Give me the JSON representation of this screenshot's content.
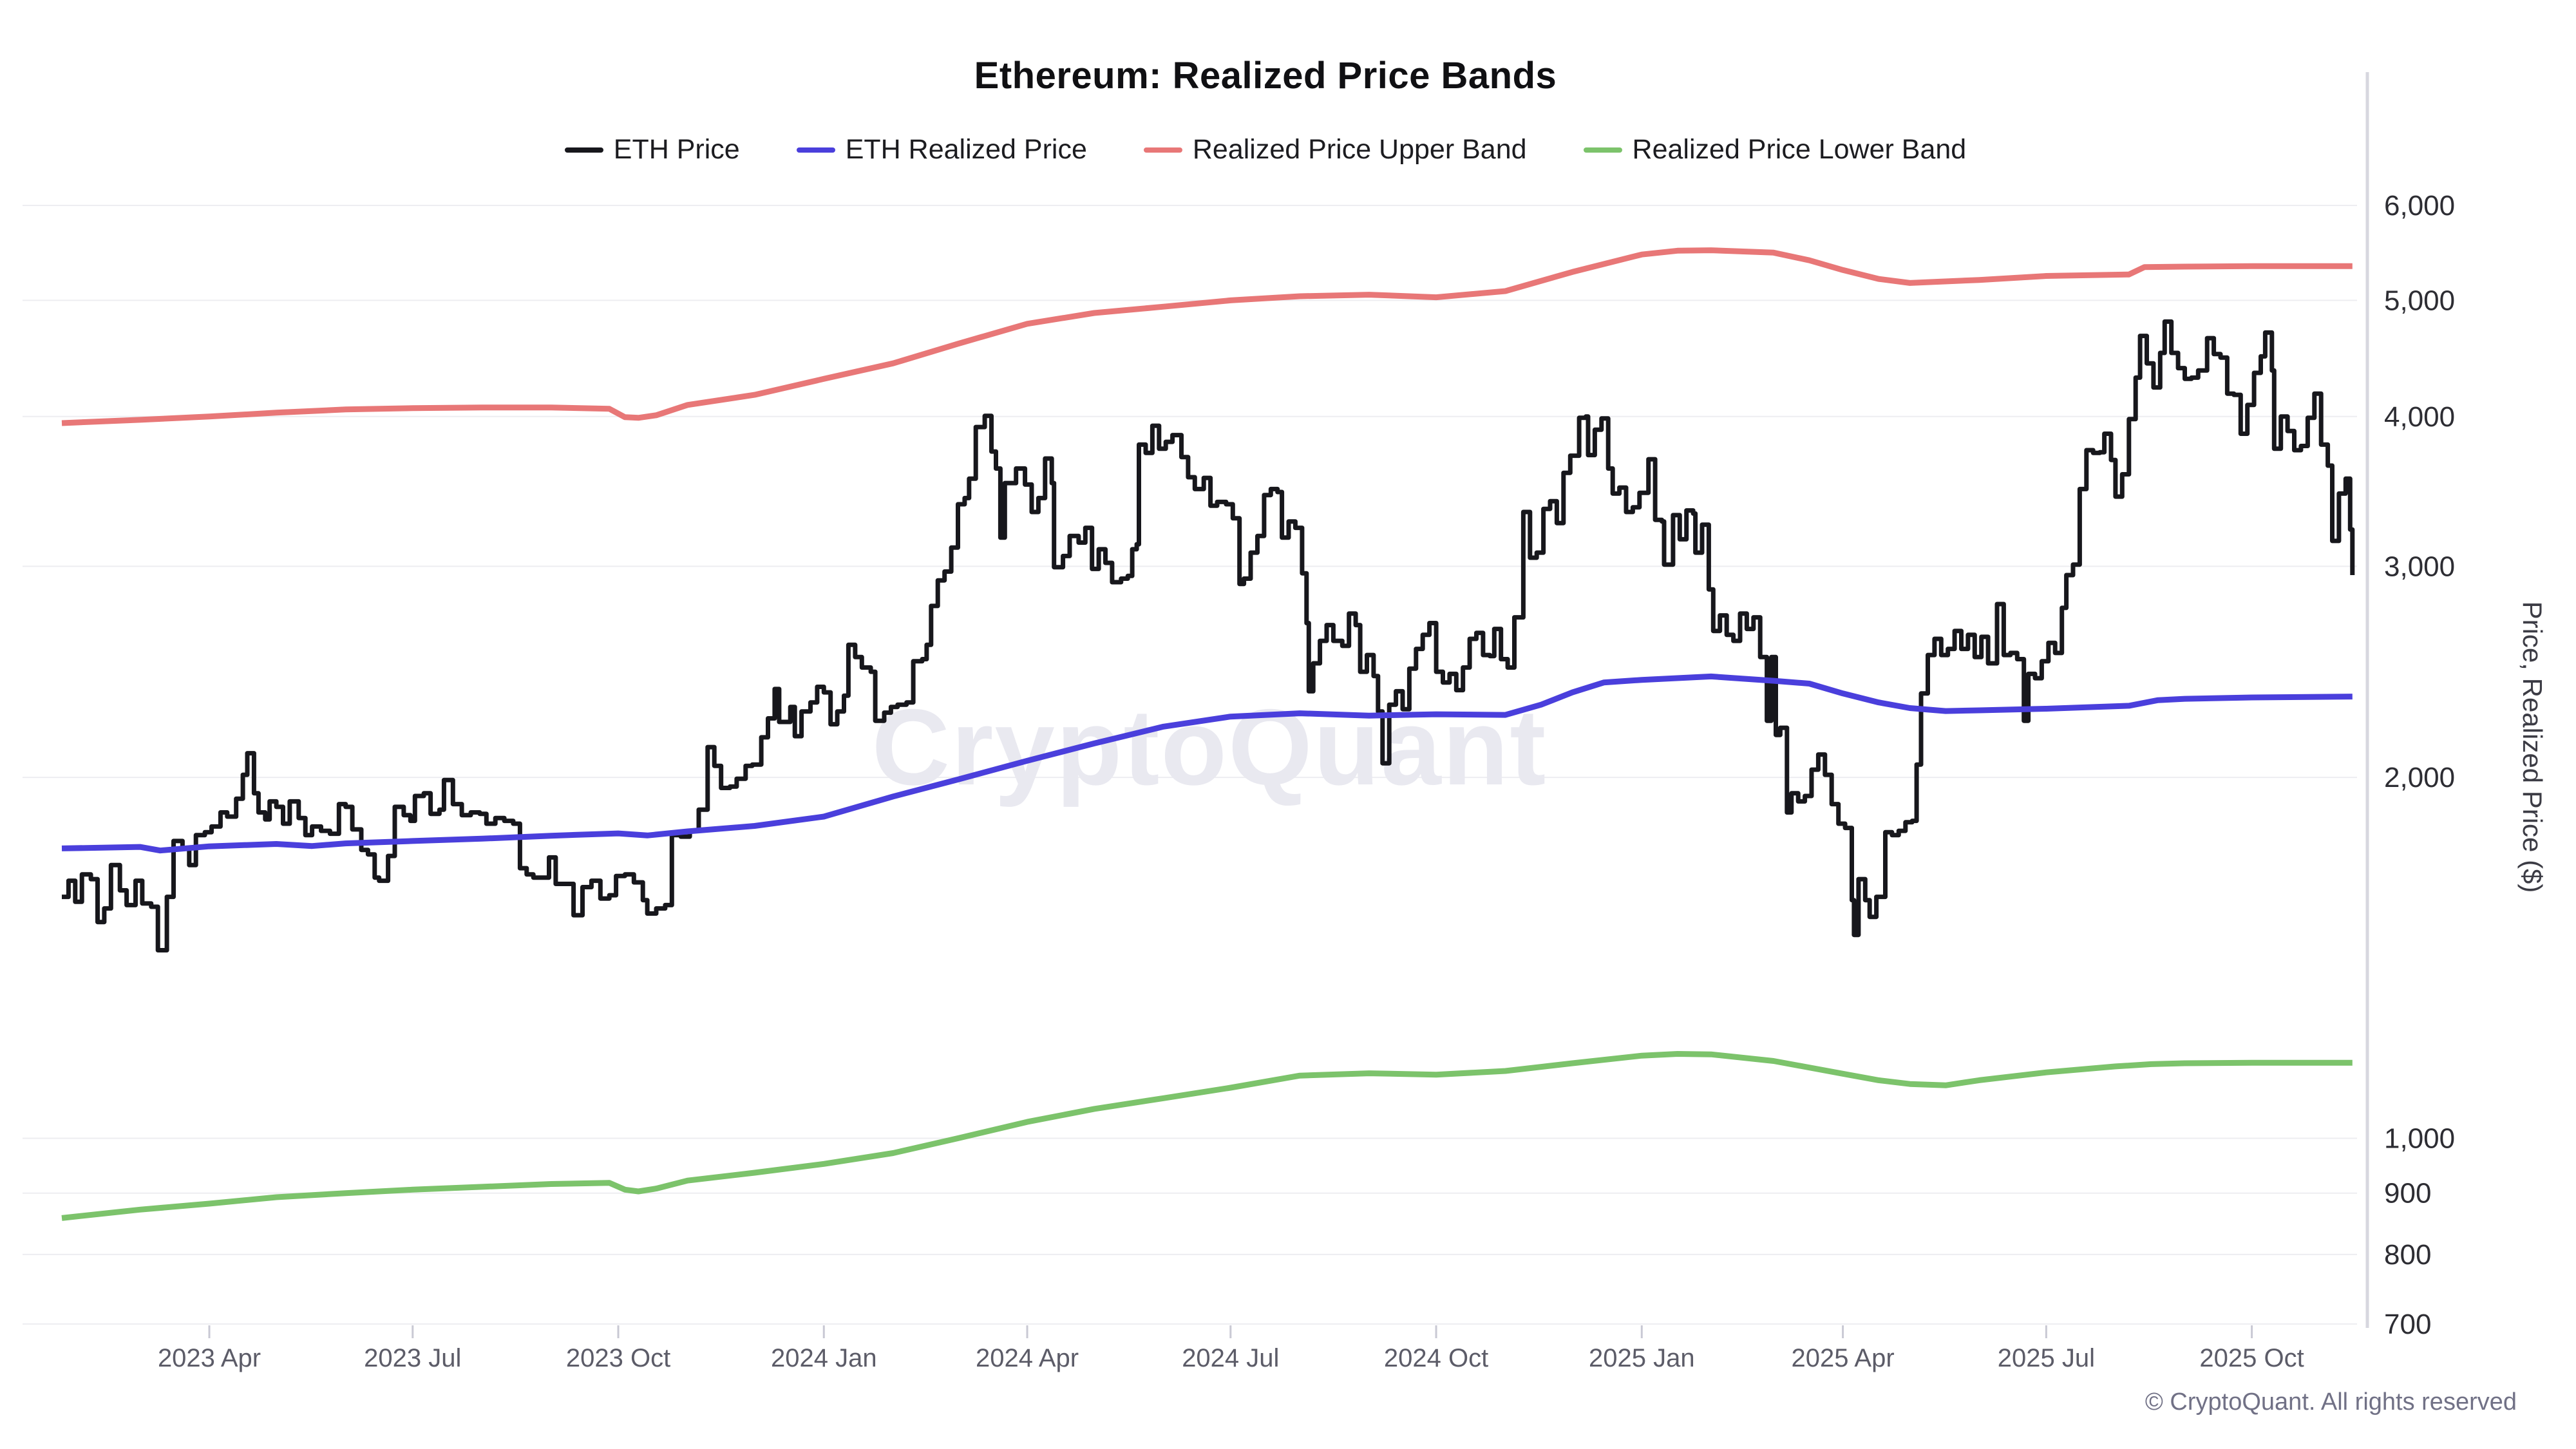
{
  "title": "Ethereum: Realized Price Bands",
  "watermark": "CryptoQuant",
  "copyright": "© CryptoQuant. All rights reserved",
  "legend": {
    "items": [
      {
        "label": "ETH Price",
        "color": "#17171c"
      },
      {
        "label": "ETH Realized Price",
        "color": "#4a3fdc"
      },
      {
        "label": "Realized Price Upper Band",
        "color": "#e87777"
      },
      {
        "label": "Realized Price Lower Band",
        "color": "#7cc36b"
      }
    ]
  },
  "chart_data": {
    "type": "line",
    "title": "Ethereum: Realized Price Bands",
    "ylabel": "Price, Realized Price ($)",
    "y_scale": "log",
    "y_ticks": [
      6000,
      5000,
      4000,
      3000,
      2000,
      1000,
      900,
      800,
      700
    ],
    "ylim": [
      700,
      7600
    ],
    "grid": "horizontal",
    "legend_position": "top",
    "x_ticks": [
      {
        "d": 66,
        "label": "2023 Apr"
      },
      {
        "d": 157,
        "label": "2023 Jul"
      },
      {
        "d": 249,
        "label": "2023 Oct"
      },
      {
        "d": 341,
        "label": "2024 Jan"
      },
      {
        "d": 432,
        "label": "2024 Apr"
      },
      {
        "d": 523,
        "label": "2024 Jul"
      },
      {
        "d": 615,
        "label": "2024 Oct"
      },
      {
        "d": 707,
        "label": "2025 Jan"
      },
      {
        "d": 797,
        "label": "2025 Apr"
      },
      {
        "d": 888,
        "label": "2025 Jul"
      },
      {
        "d": 980,
        "label": "2025 Oct"
      }
    ],
    "x_range_days": [
      0,
      1025
    ],
    "series": [
      {
        "name": "ETH Price",
        "color": "#17171c",
        "style": "step",
        "width": 7,
        "d": [
          0,
          3,
          6,
          9,
          13,
          16,
          19,
          22,
          26,
          29,
          33,
          36,
          40,
          43,
          47,
          50,
          54,
          57,
          60,
          64,
          67,
          71,
          74,
          78,
          81,
          83,
          86,
          88,
          91,
          93,
          96,
          99,
          102,
          106,
          109,
          112,
          116,
          120,
          124,
          127,
          130,
          134,
          137,
          140,
          142,
          146,
          149,
          153,
          156,
          158,
          162,
          165,
          169,
          171,
          175,
          179,
          183,
          187,
          190,
          194,
          198,
          202,
          205,
          208,
          211,
          215,
          218,
          221,
          225,
          229,
          233,
          237,
          241,
          245,
          248,
          252,
          256,
          260,
          262,
          266,
          270,
          273,
          277,
          281,
          285,
          289,
          292,
          295,
          299,
          302,
          306,
          309,
          313,
          316,
          319,
          321,
          326,
          328,
          331,
          335,
          338,
          341,
          344,
          347,
          350,
          352,
          355,
          358,
          362,
          364,
          368,
          371,
          374,
          378,
          381,
          385,
          387,
          389,
          392,
          395,
          398,
          401,
          404,
          406,
          409,
          413,
          416,
          418,
          420,
          422,
          427,
          431,
          434,
          437,
          440,
          443,
          444,
          448,
          451,
          455,
          458,
          461,
          464,
          467,
          470,
          474,
          477,
          479,
          481,
          482,
          485,
          488,
          491,
          494,
          497,
          501,
          504,
          507,
          511,
          514,
          517,
          521,
          524,
          527,
          529,
          532,
          535,
          538,
          541,
          544,
          546,
          549,
          552,
          555,
          557,
          558,
          560,
          563,
          566,
          569,
          573,
          576,
          579,
          581,
          584,
          587,
          589,
          591,
          594,
          597,
          600,
          603,
          606,
          609,
          612,
          615,
          618,
          621,
          624,
          627,
          630,
          633,
          636,
          639,
          641,
          644,
          647,
          650,
          654,
          657,
          660,
          663,
          666,
          669,
          672,
          675,
          679,
          682,
          683,
          686,
          689,
          692,
          694,
          697,
          700,
          703,
          706,
          710,
          713,
          716,
          717,
          721,
          724,
          727,
          730,
          731,
          734,
          737,
          739,
          742,
          745,
          748,
          751,
          754,
          757,
          760,
          763,
          765,
          767,
          769,
          772,
          774,
          777,
          780,
          783,
          786,
          789,
          792,
          795,
          798,
          801,
          802,
          804,
          807,
          809,
          812,
          816,
          819,
          822,
          825,
          828,
          830,
          832,
          835,
          838,
          841,
          844,
          847,
          850,
          853,
          856,
          859,
          862,
          866,
          869,
          872,
          875,
          878,
          880,
          883,
          886,
          889,
          892,
          895,
          897,
          900,
          903,
          906,
          909,
          912,
          914,
          917,
          919,
          922,
          925,
          928,
          930,
          933,
          936,
          939,
          941,
          944,
          947,
          950,
          953,
          956,
          960,
          963,
          966,
          969,
          972,
          975,
          978,
          981,
          984,
          986,
          989,
          990,
          993,
          996,
          999,
          1002,
          1005,
          1008,
          1011,
          1014,
          1016,
          1019,
          1022,
          1024,
          1025
        ],
        "v": [
          1590,
          1640,
          1575,
          1660,
          1645,
          1515,
          1555,
          1690,
          1610,
          1565,
          1640,
          1570,
          1560,
          1435,
          1590,
          1770,
          1745,
          1690,
          1790,
          1800,
          1820,
          1870,
          1855,
          1920,
          2010,
          2095,
          1940,
          1870,
          1845,
          1910,
          1890,
          1830,
          1910,
          1850,
          1790,
          1820,
          1805,
          1795,
          1900,
          1890,
          1810,
          1740,
          1725,
          1650,
          1640,
          1720,
          1890,
          1860,
          1840,
          1930,
          1940,
          1865,
          1880,
          1990,
          1900,
          1860,
          1870,
          1865,
          1830,
          1850,
          1840,
          1830,
          1680,
          1660,
          1650,
          1650,
          1715,
          1630,
          1630,
          1535,
          1620,
          1640,
          1585,
          1595,
          1655,
          1660,
          1635,
          1580,
          1540,
          1555,
          1565,
          1790,
          1785,
          1805,
          1880,
          2120,
          2045,
          1960,
          1965,
          1995,
          2045,
          2050,
          2160,
          2240,
          2370,
          2225,
          2290,
          2165,
          2270,
          2310,
          2380,
          2355,
          2215,
          2270,
          2340,
          2580,
          2520,
          2470,
          2450,
          2230,
          2265,
          2290,
          2300,
          2310,
          2500,
          2510,
          2580,
          2780,
          2920,
          2970,
          3110,
          3380,
          3420,
          3550,
          3920,
          4005,
          3740,
          3620,
          3170,
          3520,
          3620,
          3510,
          3330,
          3420,
          3690,
          3520,
          2995,
          3060,
          3180,
          3140,
          3230,
          2985,
          3100,
          3020,
          2910,
          2930,
          2945,
          3100,
          3130,
          3790,
          3730,
          3930,
          3760,
          3810,
          3860,
          3700,
          3560,
          3480,
          3555,
          3370,
          3395,
          3380,
          3290,
          2900,
          2930,
          3080,
          3180,
          3440,
          3480,
          3460,
          3170,
          3270,
          3230,
          2960,
          2690,
          2360,
          2490,
          2600,
          2680,
          2600,
          2575,
          2740,
          2680,
          2450,
          2530,
          2430,
          2270,
          2055,
          2300,
          2360,
          2280,
          2465,
          2560,
          2630,
          2690,
          2450,
          2400,
          2440,
          2365,
          2470,
          2610,
          2640,
          2530,
          2525,
          2660,
          2510,
          2470,
          2720,
          3330,
          3050,
          3080,
          3350,
          3400,
          3260,
          3590,
          3710,
          3990,
          4000,
          3715,
          3900,
          3985,
          3620,
          3450,
          3490,
          3330,
          3360,
          3455,
          3685,
          3280,
          3270,
          3010,
          3310,
          3160,
          3340,
          3320,
          3080,
          3250,
          2870,
          2650,
          2730,
          2630,
          2600,
          2740,
          2660,
          2720,
          2520,
          2230,
          2520,
          2170,
          2200,
          1870,
          1940,
          1910,
          1930,
          2030,
          2090,
          2010,
          1900,
          1830,
          1815,
          1580,
          1478,
          1645,
          1580,
          1530,
          1590,
          1800,
          1790,
          1805,
          1835,
          1840,
          2050,
          2350,
          2530,
          2610,
          2530,
          2560,
          2650,
          2560,
          2630,
          2520,
          2620,
          2490,
          2790,
          2530,
          2540,
          2510,
          2230,
          2440,
          2420,
          2500,
          2590,
          2540,
          2770,
          2950,
          3010,
          3480,
          3750,
          3730,
          3735,
          3870,
          3680,
          3430,
          3580,
          3980,
          4310,
          4670,
          4430,
          4230,
          4520,
          4800,
          4520,
          4390,
          4300,
          4310,
          4370,
          4650,
          4510,
          4480,
          4180,
          4170,
          3870,
          4090,
          4350,
          4490,
          4700,
          4370,
          3760,
          4000,
          3890,
          3750,
          3780,
          3990,
          4180,
          3790,
          3640,
          3150,
          3450,
          3550,
          3220,
          2950
        ]
      },
      {
        "name": "Realized Price Upper Band",
        "color": "#e87777",
        "style": "line",
        "width": 9,
        "d": [
          0,
          35,
          66,
          96,
          127,
          157,
          188,
          219,
          245,
          252,
          258,
          266,
          280,
          310,
          341,
          372,
          401,
          432,
          462,
          493,
          523,
          554,
          585,
          615,
          646,
          676,
          707,
          723,
          738,
          766,
          782,
          797,
          813,
          827,
          858,
          888,
          925,
          932,
          950,
          980,
          1025
        ],
        "v": [
          3950,
          3975,
          4000,
          4030,
          4055,
          4065,
          4070,
          4070,
          4060,
          3995,
          3990,
          4010,
          4090,
          4170,
          4300,
          4430,
          4600,
          4780,
          4880,
          4940,
          5000,
          5040,
          5055,
          5030,
          5090,
          5280,
          5460,
          5500,
          5505,
          5480,
          5400,
          5300,
          5210,
          5170,
          5200,
          5240,
          5255,
          5330,
          5335,
          5340,
          5340
        ]
      },
      {
        "name": "Realized Price Lower Band",
        "color": "#7cc36b",
        "style": "line",
        "width": 9,
        "d": [
          0,
          35,
          66,
          96,
          127,
          157,
          188,
          219,
          245,
          252,
          258,
          266,
          280,
          310,
          341,
          372,
          401,
          432,
          462,
          493,
          523,
          554,
          585,
          615,
          646,
          676,
          707,
          723,
          738,
          766,
          797,
          813,
          827,
          843,
          858,
          888,
          919,
          935,
          950,
          980,
          1011,
          1025
        ],
        "v": [
          858,
          872,
          882,
          893,
          900,
          906,
          911,
          916,
          918,
          906,
          903,
          908,
          922,
          936,
          952,
          972,
          1000,
          1032,
          1058,
          1080,
          1102,
          1128,
          1133,
          1130,
          1138,
          1155,
          1172,
          1176,
          1175,
          1160,
          1132,
          1118,
          1110,
          1107,
          1118,
          1135,
          1148,
          1153,
          1155,
          1156,
          1156,
          1156
        ]
      },
      {
        "name": "ETH Realized Price",
        "color": "#4a3fdc",
        "style": "line",
        "width": 9,
        "d": [
          0,
          35,
          44,
          66,
          96,
          112,
          127,
          157,
          188,
          219,
          249,
          262,
          280,
          310,
          341,
          372,
          401,
          432,
          462,
          493,
          523,
          554,
          585,
          615,
          646,
          662,
          676,
          690,
          707,
          738,
          766,
          782,
          797,
          813,
          827,
          843,
          858,
          888,
          925,
          938,
          950,
          980,
          1025
        ],
        "v": [
          1745,
          1750,
          1738,
          1752,
          1760,
          1753,
          1762,
          1770,
          1778,
          1788,
          1796,
          1789,
          1803,
          1822,
          1855,
          1928,
          1992,
          2065,
          2135,
          2205,
          2248,
          2262,
          2252,
          2258,
          2255,
          2300,
          2355,
          2400,
          2412,
          2428,
          2408,
          2395,
          2350,
          2310,
          2285,
          2272,
          2275,
          2282,
          2295,
          2320,
          2326,
          2332,
          2336
        ]
      }
    ]
  }
}
